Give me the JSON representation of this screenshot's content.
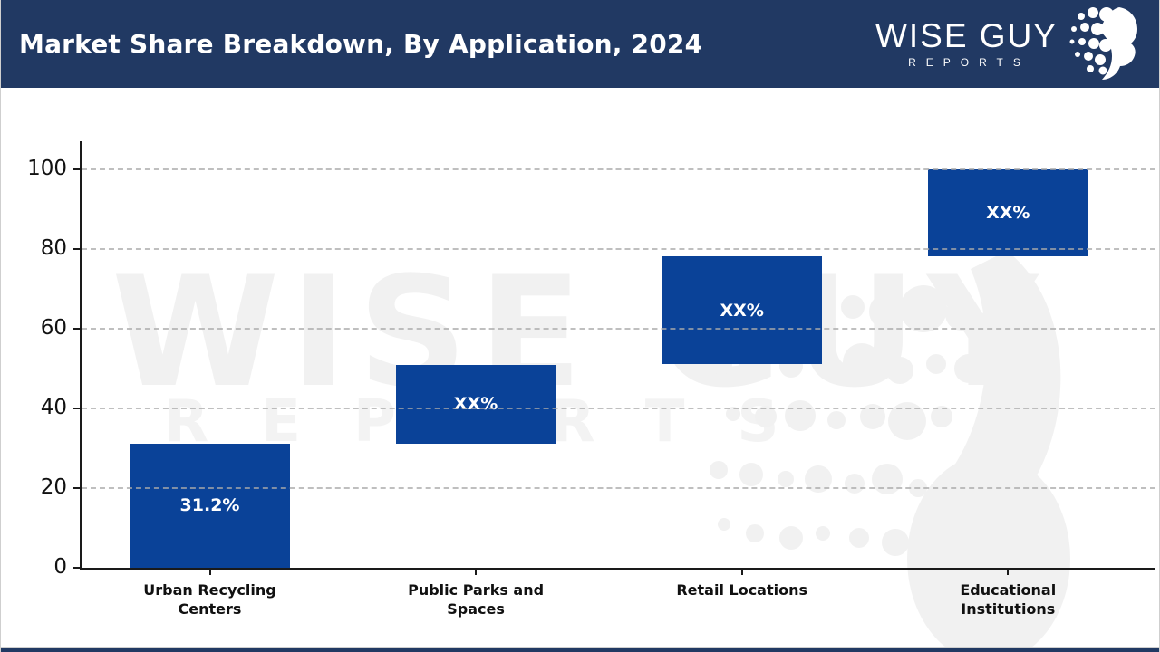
{
  "header": {
    "title": "Market Share Breakdown, By Application, 2024",
    "logo": {
      "name": "WISE GUY",
      "sub": "REPORTS"
    }
  },
  "watermark": {
    "word": "WISE GUY",
    "sub": "REPORTS"
  },
  "chart_data": {
    "type": "bar",
    "subtype": "waterfall-floating-bars",
    "title": "Market Share Breakdown, By Application, 2024",
    "categories": [
      "Urban Recycling Centers",
      "Public Parks and Spaces",
      "Retail Locations",
      "Educational Institutions"
    ],
    "category_label_lines": [
      [
        "Urban Recycling",
        "Centers"
      ],
      [
        "Public Parks and",
        "Spaces"
      ],
      [
        "Retail Locations"
      ],
      [
        "Educational",
        "Institutions"
      ]
    ],
    "bars": [
      {
        "category": "Urban Recycling Centers",
        "start": 0,
        "end": 31.2,
        "label": "31.2%"
      },
      {
        "category": "Public Parks and Spaces",
        "start": 31.2,
        "end": 51.0,
        "label": "XX%"
      },
      {
        "category": "Retail Locations",
        "start": 51.0,
        "end": 78.2,
        "label": "XX%"
      },
      {
        "category": "Educational Institutions",
        "start": 78.2,
        "end": 100,
        "label": "XX%"
      }
    ],
    "yticks": [
      0,
      20,
      40,
      60,
      80,
      100
    ],
    "ylim": [
      0,
      107
    ],
    "xlabel": "",
    "ylabel": "",
    "grid": "horizontal-dashed",
    "legend": "none",
    "colors": {
      "bar": "#0a4298",
      "header_bg": "#213963",
      "bar_label_text": "#ffffff",
      "axis": "#1a1a1a",
      "grid": "#aaaaaa",
      "watermark": "#f1f1f1"
    }
  }
}
